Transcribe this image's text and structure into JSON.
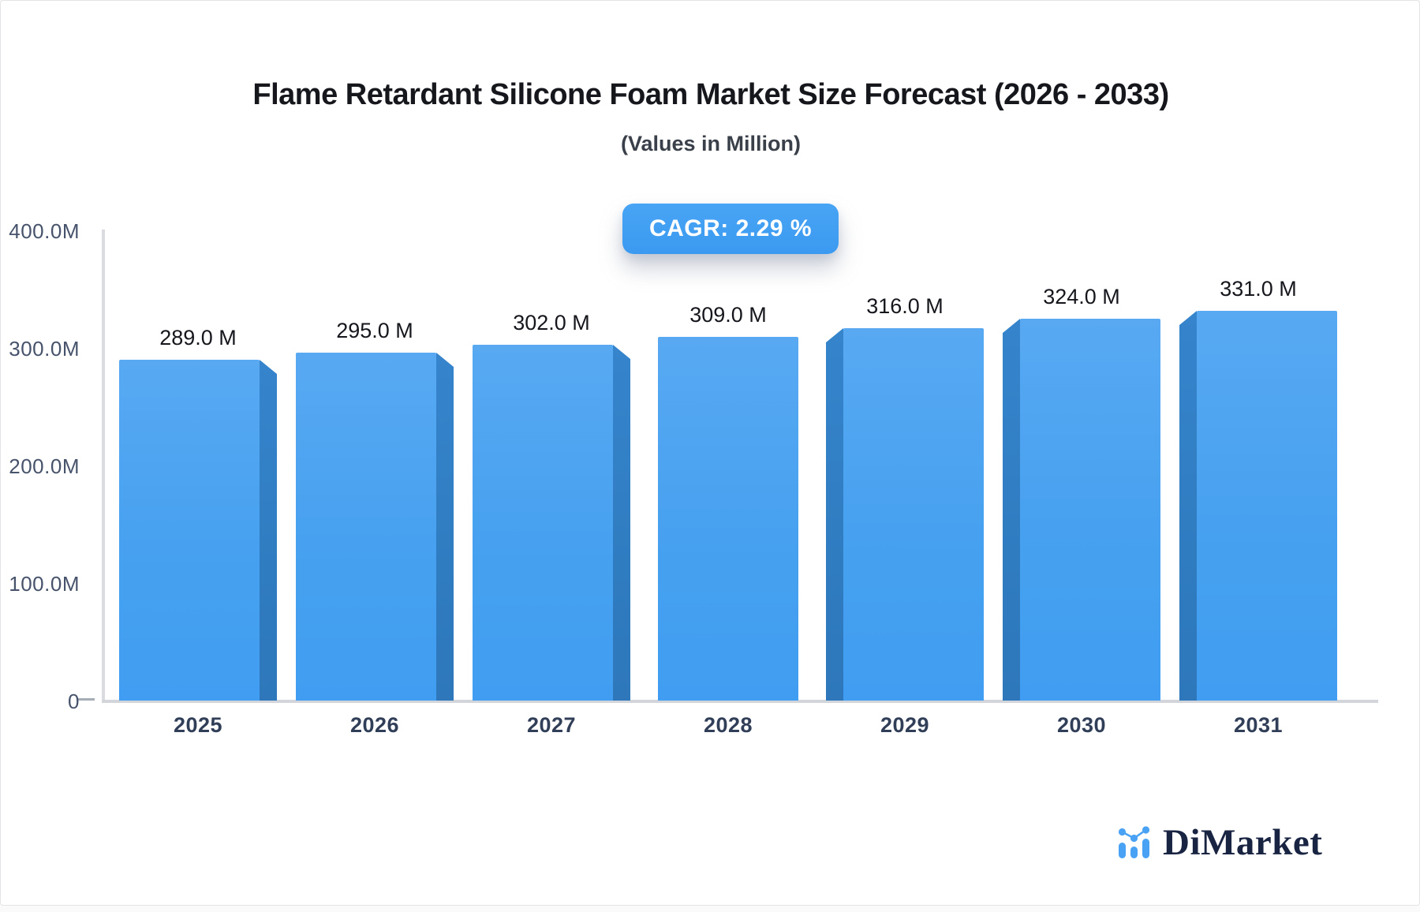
{
  "header": {
    "title": "Flame Retardant Silicone Foam Market Size Forecast (2026 - 2033)",
    "subtitle": "(Values in Million)",
    "cagr_badge_label": "CAGR: 2.29 %"
  },
  "chart_data": {
    "type": "bar",
    "title": "Flame Retardant Silicone Foam Market Size Forecast (2026 - 2033)",
    "subtitle": "(Values in Million)",
    "unit": "Million",
    "cagr_percent": 2.29,
    "categories": [
      "2025",
      "2026",
      "2027",
      "2028",
      "2029",
      "2030",
      "2031"
    ],
    "values": [
      289.0,
      295.0,
      302.0,
      309.0,
      316.0,
      324.0,
      331.0
    ],
    "value_labels": [
      "289.0 M",
      "295.0 M",
      "302.0 M",
      "309.0 M",
      "316.0 M",
      "324.0 M",
      "331.0 M"
    ],
    "y_ticks": [
      {
        "label": "400.0M",
        "value": 400
      },
      {
        "label": "300.0M",
        "value": 300
      },
      {
        "label": "200.0M",
        "value": 200
      },
      {
        "label": "100.0M",
        "value": 100
      },
      {
        "label": "0",
        "value": 0
      }
    ],
    "ylim": [
      0,
      400
    ],
    "grid": false,
    "legend": false,
    "colors": {
      "bar_face": "#4aa2f0",
      "bar_side": "#2f79bd",
      "badge": "#3f9ef2",
      "axis": "#d6d8dd"
    }
  },
  "branding": {
    "logo_text": "DiMarket",
    "logo_icon": "mini-bar-line-chart-icon",
    "logo_text_color": "#182441",
    "logo_icon_color": "#4aa2f5"
  }
}
